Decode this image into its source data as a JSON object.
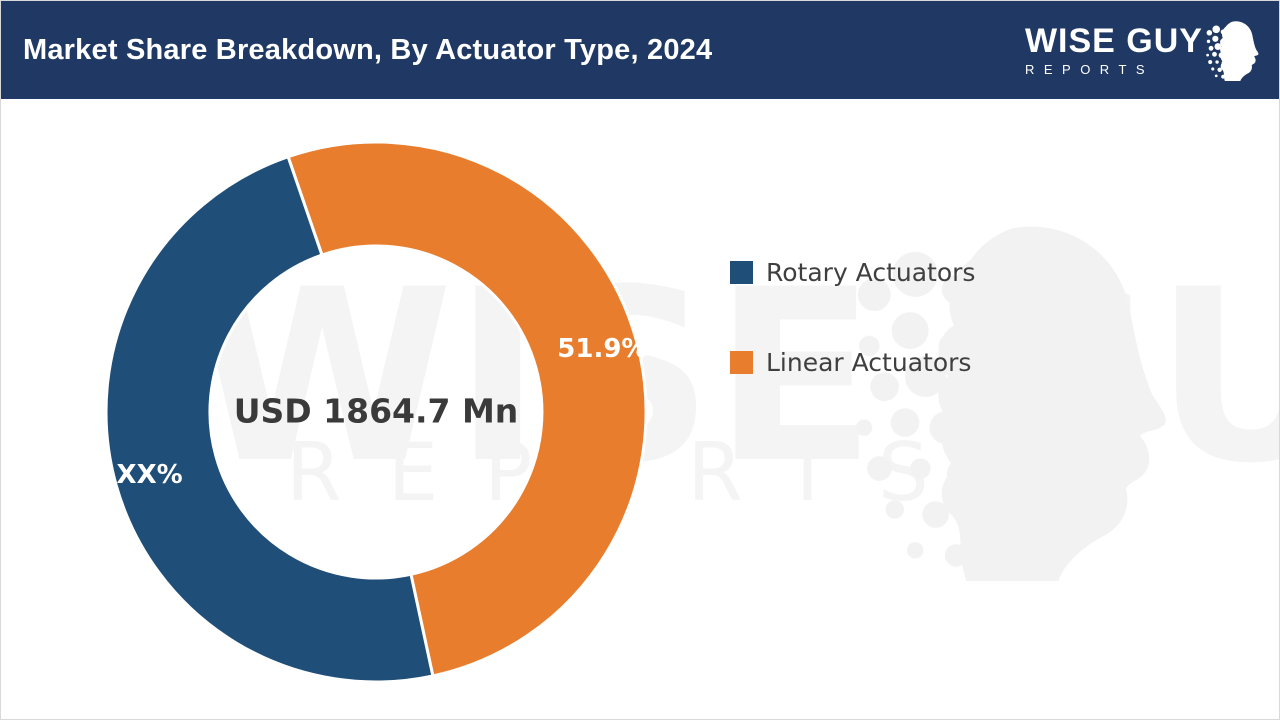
{
  "header": {
    "title": "Market Share Breakdown, By Actuator Type, 2024",
    "logo": {
      "line1": "WISE GUY",
      "line2": "REPORTS"
    }
  },
  "watermark": {
    "line1": "WISE GUY",
    "line2": "REPORTS"
  },
  "legend": [
    {
      "label": "Rotary Actuators",
      "color": "#1f4e79"
    },
    {
      "label": "Linear Actuators",
      "color": "#e87d2d"
    }
  ],
  "colors": {
    "header_background": "#1f3864",
    "rotary_blue": "#1f4e79",
    "linear_orange": "#e87d2d",
    "watermark_gray": "#f4f4f4",
    "center_text": "#3a3a3a"
  },
  "chart_data": {
    "type": "pie",
    "subtype": "donut",
    "title": "Market Share Breakdown, By Actuator Type, 2024",
    "center_label": "USD 1864.7 Mn",
    "units": "%",
    "legend_position": "right",
    "start_angle_deg": -19,
    "slices": [
      {
        "name": "Linear Actuators",
        "value_pct": 51.9,
        "label": "51.9%",
        "color": "#e87d2d"
      },
      {
        "name": "Rotary Actuators",
        "value_pct": 48.1,
        "label": "XX%",
        "color": "#1f4e79"
      }
    ]
  }
}
